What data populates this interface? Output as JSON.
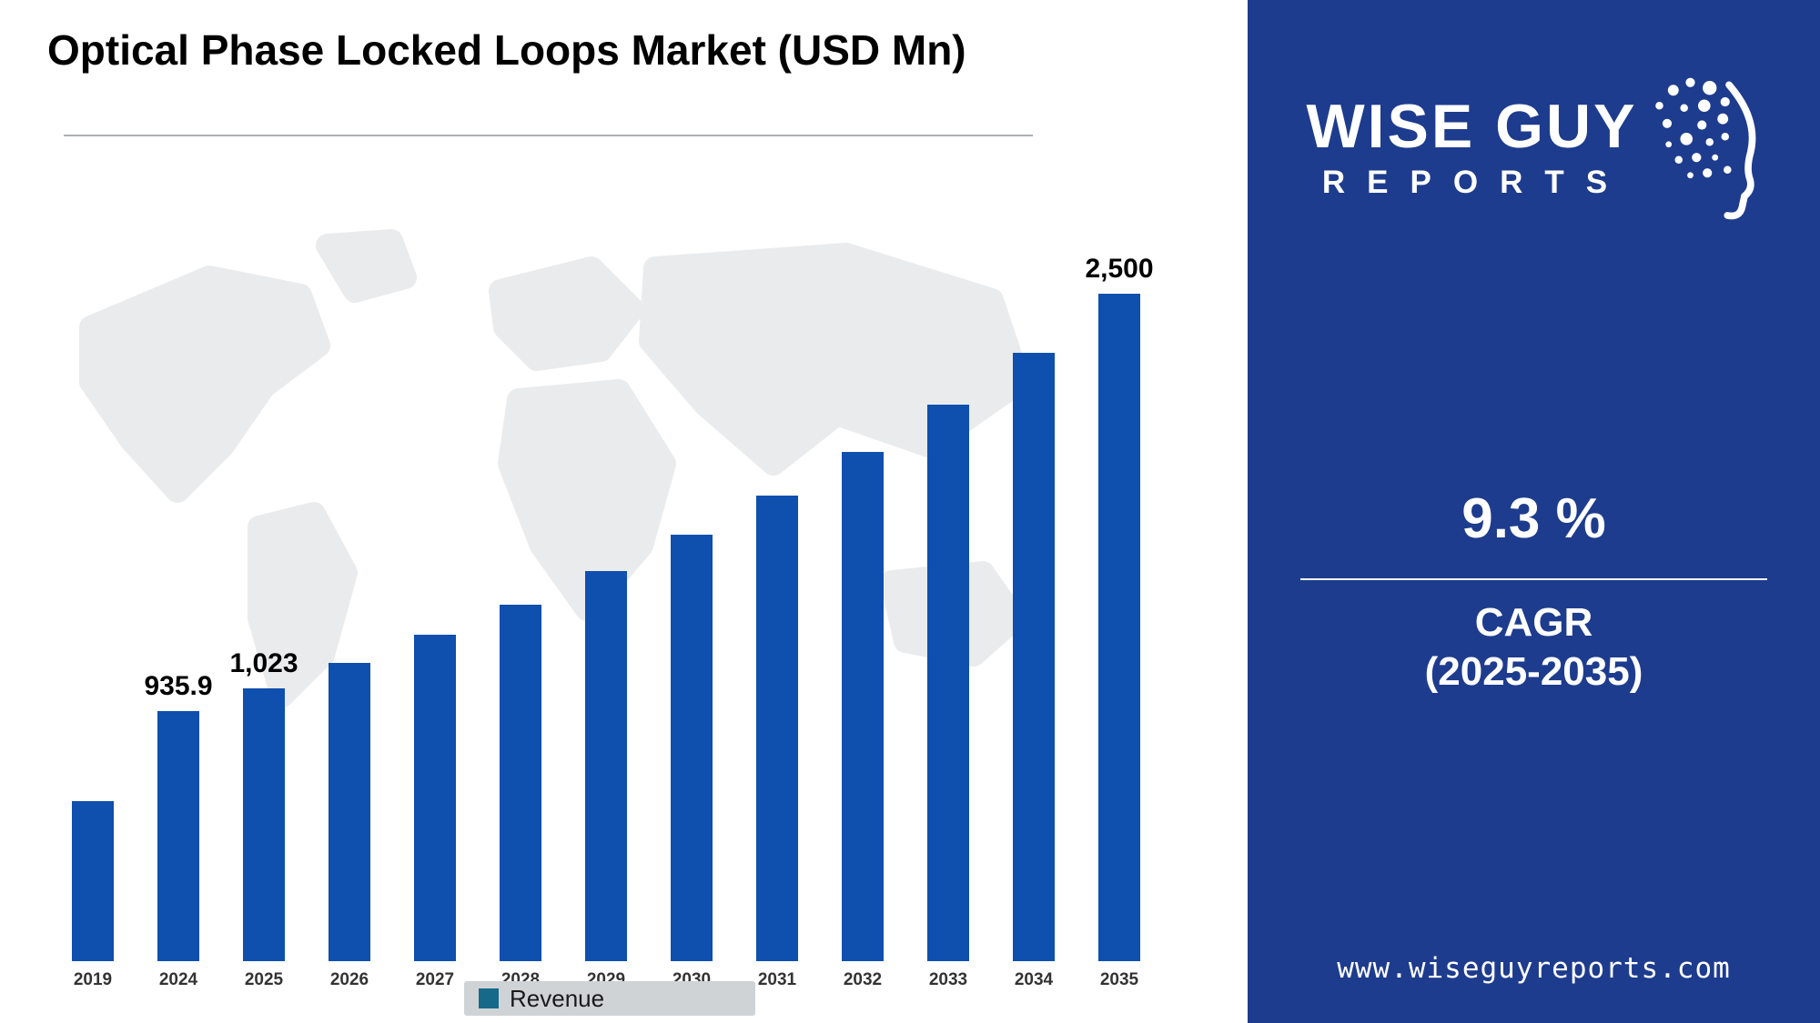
{
  "chart_data": {
    "type": "bar",
    "title": "Optical Phase Locked Loops Market (USD Mn)",
    "categories": [
      "2019",
      "2024",
      "2025",
      "2026",
      "2027",
      "2028",
      "2029",
      "2030",
      "2031",
      "2032",
      "2033",
      "2034",
      "2035"
    ],
    "values": [
      600,
      935.9,
      1023,
      1118,
      1222,
      1336,
      1460,
      1596,
      1744,
      1906,
      2084,
      2277,
      2500
    ],
    "data_labels": [
      "",
      "935.9",
      "1,023",
      "",
      "",
      "",
      "",
      "",
      "",
      "",
      "",
      "",
      "2,500"
    ],
    "legend": [
      "Revenue"
    ],
    "legend_position": "bottom",
    "xlabel": "",
    "ylabel": "",
    "ylim": [
      0,
      2500
    ],
    "grid": false
  },
  "sidebar": {
    "logo": {
      "line1": "WISE GUY",
      "line2": "REPORTS"
    },
    "cagr_value": "9.3 %",
    "cagr_label": "CAGR",
    "cagr_period": "(2025-2035)",
    "website": "www.wiseguyreports.com"
  },
  "colors": {
    "bar": "#0f4fae",
    "sidebar_bg": "#1e3c8e",
    "legend_square": "#17698a",
    "map": "#e9ebed"
  }
}
